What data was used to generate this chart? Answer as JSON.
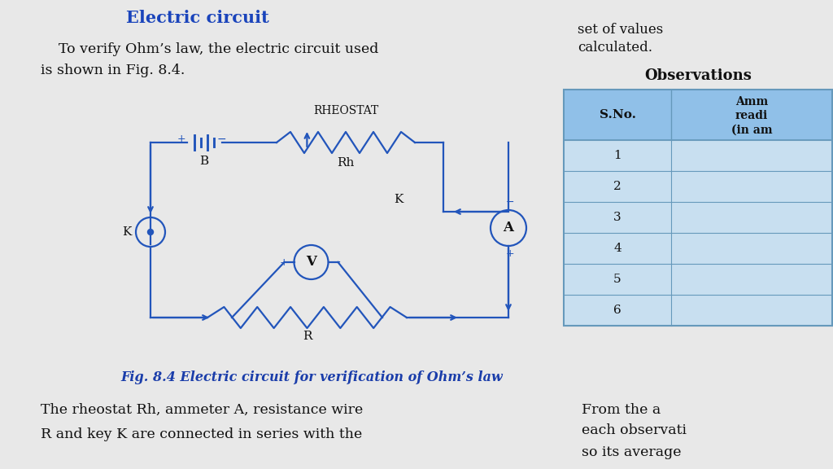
{
  "bg_color": "#d8d8d8",
  "page_color": "#e8e8e8",
  "title_text": "Electric circuit",
  "title_color": "#1a44bb",
  "para_line1": "    To verify Ohm’s law, the electric circuit used",
  "para_line2": "is shown in Fig. 8.4.",
  "caption_text": "Fig. 8.4 Electric circuit for verification of Ohm’s law",
  "right_top1": "set of values",
  "right_top2": "calculated.",
  "obs_header": "Observations",
  "table_col1": "S.No.",
  "table_col2_line1": "Amm",
  "table_col2_line2": "readi",
  "table_col2_line3": "(in am",
  "table_rows": [
    "1",
    "2",
    "3",
    "4",
    "5",
    "6"
  ],
  "bottom_left1": "The rheostat Rh, ammeter A, resistance wire",
  "bottom_left2": "R and key K are connected in series with the",
  "bottom_right1": "From the a",
  "bottom_right2": "each observati",
  "bottom_right3": "so its average",
  "circuit_color": "#2255bb",
  "caption_color": "#1a3daa",
  "text_color": "#111111",
  "table_header_bg": "#90c0e8",
  "table_row_bg": "#c8dff0",
  "table_border": "#6699bb"
}
